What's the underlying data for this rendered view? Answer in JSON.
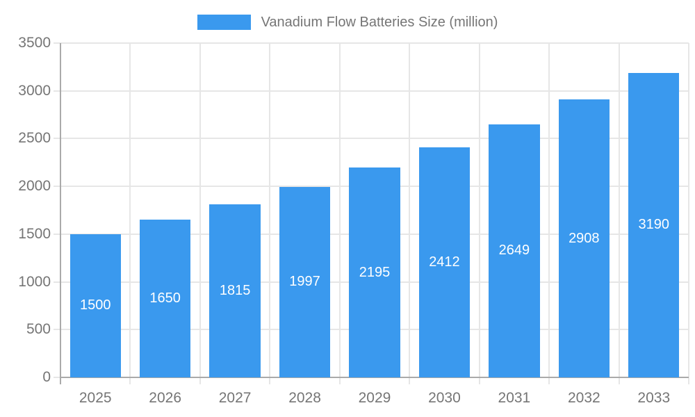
{
  "chart_data": {
    "type": "bar",
    "title": "",
    "legend": "Vanadium Flow Batteries Size (million)",
    "legend_position": "top-center",
    "categories": [
      "2025",
      "2026",
      "2027",
      "2028",
      "2029",
      "2030",
      "2031",
      "2032",
      "2033"
    ],
    "values": [
      1500,
      1650,
      1815,
      1997,
      2195,
      2412,
      2649,
      2908,
      3190
    ],
    "xlabel": "",
    "ylabel": "",
    "ylim": [
      0,
      3500
    ],
    "ytick_step": 500,
    "yticks": [
      "0",
      "500",
      "1000",
      "1500",
      "2000",
      "2500",
      "3000",
      "3500"
    ],
    "grid": true,
    "value_labels": "inside-center-white"
  },
  "colors": {
    "bar": "#3a99ee",
    "grid": "#e6e6e6",
    "axis": "#aaaaaa",
    "text": "#757575",
    "value_label": "#ffffff",
    "background": "#ffffff"
  }
}
